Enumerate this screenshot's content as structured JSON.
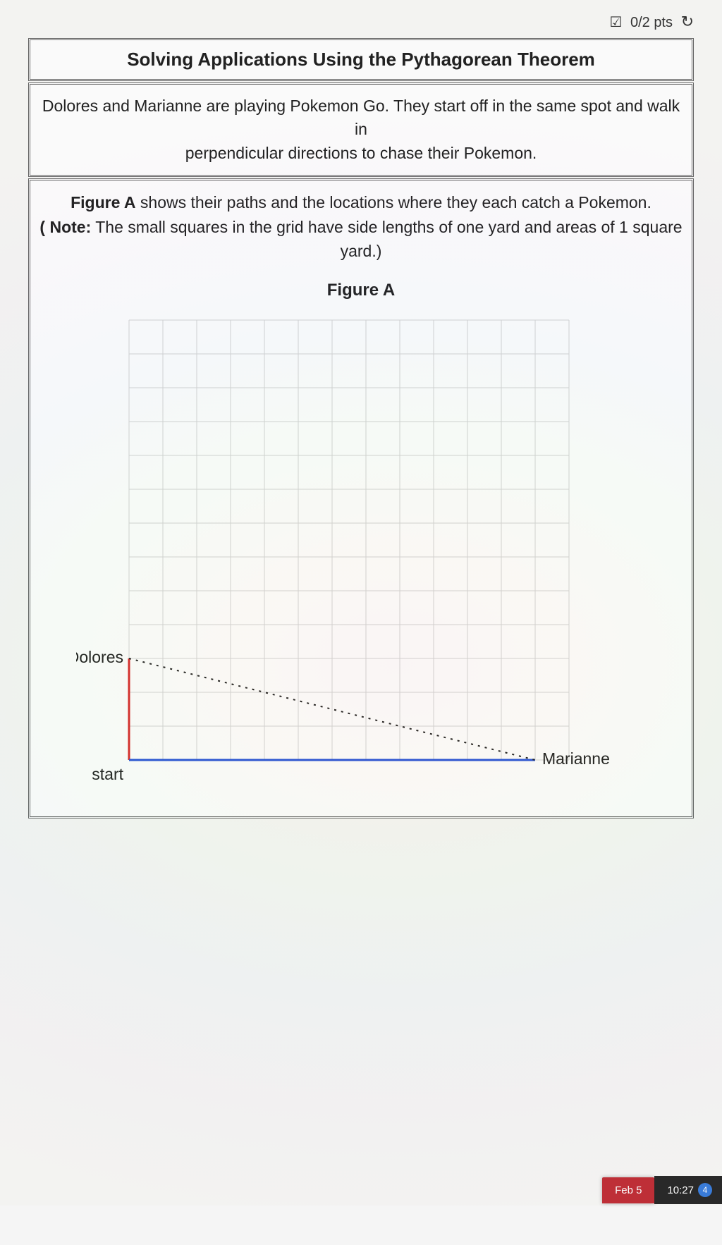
{
  "header": {
    "check_icon": "☑",
    "points": "0/2 pts",
    "refresh_icon": "↻"
  },
  "title": "Solving Applications Using the Pythagorean Theorem",
  "intro_line1": "Dolores and Marianne are playing Pokemon Go. They start off in the same spot and walk in",
  "intro_line2": "perpendicular directions to chase their Pokemon.",
  "fig_line1_prefix": "Figure A",
  "fig_line1_rest": " shows their paths and the locations where they each catch a Pokemon.",
  "fig_note_prefix": "( Note:",
  "fig_note_rest": " The small squares in the grid have side lengths of one yard and areas of 1 square yard.)",
  "figure_label": "Figure A",
  "chart": {
    "grid": {
      "cols": 13,
      "rows": 13,
      "cell": 48,
      "line_color": "#d5d5d5",
      "bg_color": "#ffffff"
    },
    "start": {
      "col": 0,
      "row": 13,
      "label": "start",
      "label_fontsize": 23
    },
    "dolores": {
      "col": 0,
      "row": 10,
      "label": "Dolores",
      "label_fontsize": 23,
      "path_color": "#d82c2c",
      "path_width": 3
    },
    "marianne": {
      "col": 12,
      "row": 13,
      "label": "Marianne",
      "label_fontsize": 23,
      "path_color": "#2a55d8",
      "path_width": 3
    },
    "distance_line": {
      "color": "#222222",
      "width": 2,
      "dash": "3,7"
    }
  },
  "taskbar": {
    "date": "Feb 5",
    "time": "10:27",
    "dot": "4"
  }
}
